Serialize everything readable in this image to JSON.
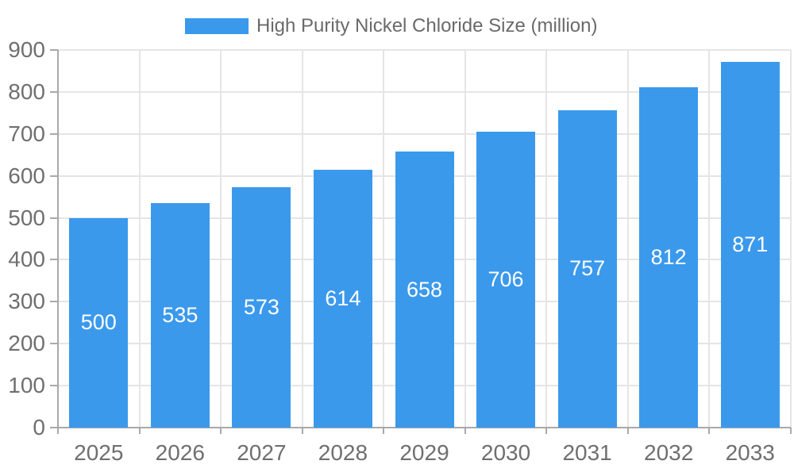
{
  "chart": {
    "legend_label": "High Purity Nickel Chloride Size (million)"
  },
  "colors": {
    "bar": "#3B99EC",
    "grid": "#E5E5E5",
    "axis": "#A9A9A9",
    "axis_text": "#6F6F6F",
    "legend_text": "#6A6A6A",
    "bar_label_text": "#FFFFFF",
    "background": "#FFFFFF"
  },
  "chart_data": {
    "type": "bar",
    "title": "High Purity Nickel Chloride Size (million)",
    "series_name": "High Purity Nickel Chloride Size (million)",
    "categories": [
      "2025",
      "2026",
      "2027",
      "2028",
      "2029",
      "2030",
      "2031",
      "2032",
      "2033"
    ],
    "values": [
      500,
      535,
      573,
      614,
      658,
      706,
      757,
      812,
      871
    ],
    "xlabel": "",
    "ylabel": "",
    "ylim": [
      0,
      900
    ],
    "ytick_step": 100,
    "yticks": [
      0,
      100,
      200,
      300,
      400,
      500,
      600,
      700,
      800,
      900
    ],
    "grid": "on",
    "legend_position": "top",
    "value_labels": "inside-center",
    "bar_color": "#3B99EC"
  }
}
